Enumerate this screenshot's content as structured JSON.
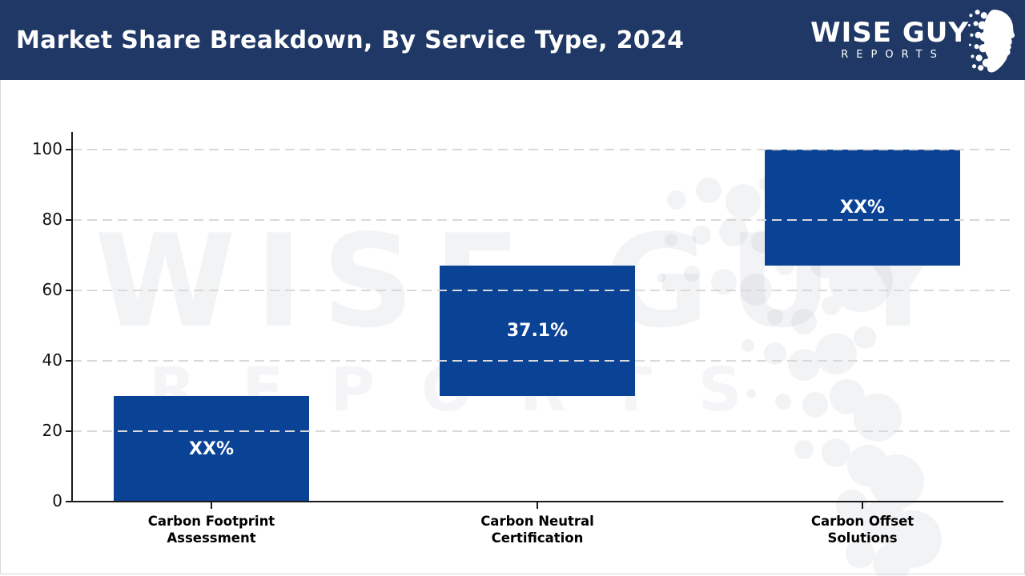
{
  "header": {
    "title": "Market Share Breakdown, By Service Type, 2024",
    "bg_color": "#1f3865",
    "logo": {
      "line1": "WISE GUY",
      "line2": "REPORTS"
    }
  },
  "watermark": {
    "line1": "WISE GUY",
    "line2": "REPORTS"
  },
  "chart_data": {
    "type": "bar",
    "variant": "waterfall",
    "title": "Market Share Breakdown, By Service Type, 2024",
    "categories": [
      "Carbon Footprint Assessment",
      "Carbon Neutral Certification",
      "Carbon Offset Solutions"
    ],
    "category_lines": [
      [
        "Carbon Footprint",
        "Assessment"
      ],
      [
        "Carbon Neutral",
        "Certification"
      ],
      [
        "Carbon Offset",
        "Solutions"
      ]
    ],
    "bars": [
      {
        "label": "XX%",
        "start": 0,
        "end": 30,
        "height": 30
      },
      {
        "label": "37.1%",
        "start": 30,
        "end": 67.1,
        "height": 37.1
      },
      {
        "label": "XX%",
        "start": 67.1,
        "end": 100,
        "height": 32.9
      }
    ],
    "yticks": [
      0,
      20,
      40,
      60,
      80,
      100
    ],
    "ylim": [
      0,
      105
    ],
    "xlabel": "",
    "ylabel": "",
    "grid": "horizontal-dashed",
    "legend": "none",
    "bar_color": "#0a4296",
    "bar_label_color": "#ffffff"
  }
}
